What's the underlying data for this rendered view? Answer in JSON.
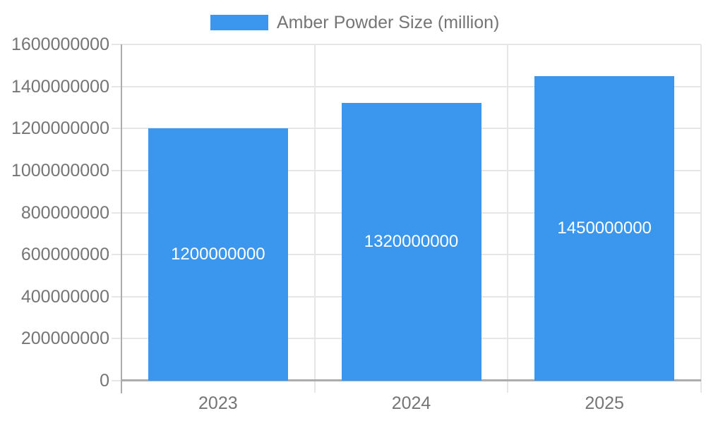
{
  "chart_data": {
    "type": "bar",
    "title": "",
    "categories": [
      "2023",
      "2024",
      "2025"
    ],
    "series": [
      {
        "name": "Amber Powder Size (million)",
        "values": [
          1200000000,
          1320000000,
          1450000000
        ]
      }
    ],
    "value_labels": [
      "1200000000",
      "1320000000",
      "1450000000"
    ],
    "xlabel": "",
    "ylabel": "",
    "ylim": [
      0,
      1600000000
    ],
    "ytick_interval": 200000000,
    "ytick_labels": [
      "0",
      "200000000",
      "400000000",
      "600000000",
      "800000000",
      "1000000000",
      "1200000000",
      "1400000000",
      "1600000000"
    ],
    "grid": true,
    "legend_position": "top-center",
    "colors": {
      "bar": "#3B97ED",
      "grid": "#E6E6E6",
      "axis": "#ACACAC",
      "tick_label": "#757575",
      "value_label": "#FFFFFF",
      "background": "#FFFFFF"
    }
  },
  "legend": {
    "label": "Amber Powder Size (million)",
    "swatch_color": "#3B97ED"
  }
}
